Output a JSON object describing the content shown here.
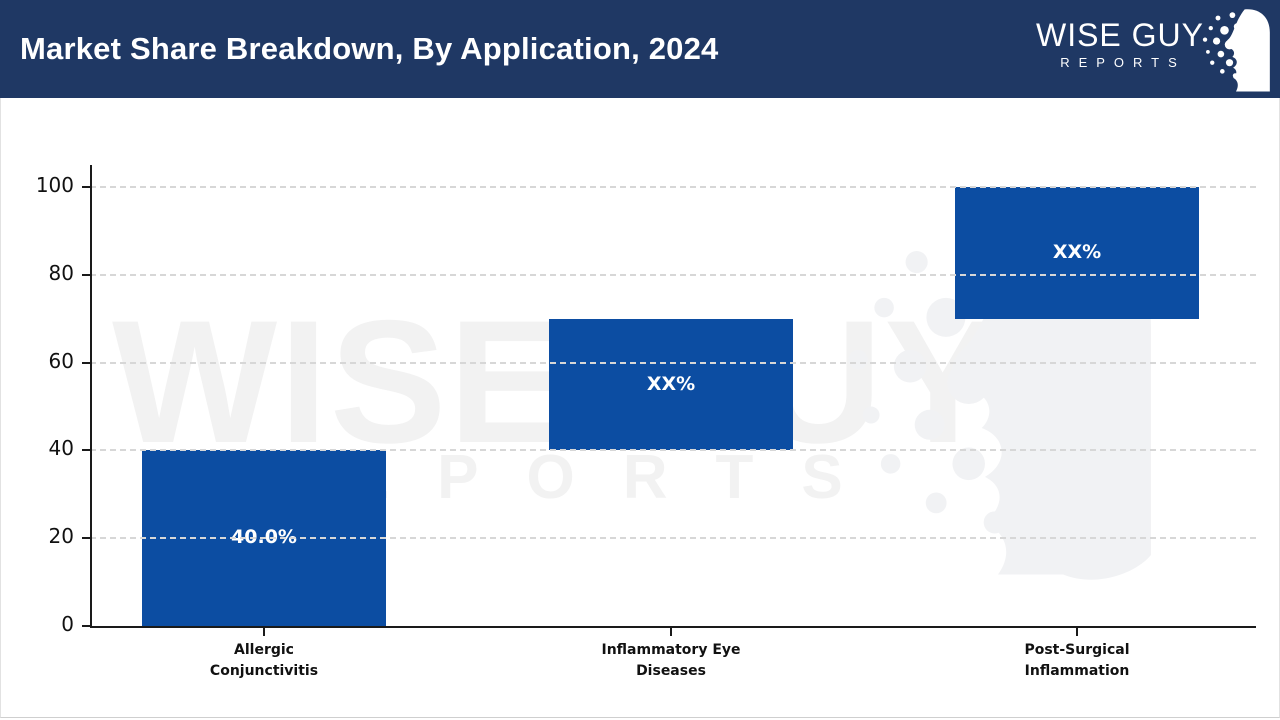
{
  "header": {
    "title": "Market Share Breakdown, By Application, 2024",
    "logo": {
      "brand": "Wise Guy Reports",
      "line1": "WISE GUY",
      "line2": "REPORTS"
    }
  },
  "watermark": {
    "line1": "WISE GUY",
    "line2": "REPORTS",
    "face_icon": "face-profile-dots"
  },
  "colors": {
    "header_bg": "#1f3864",
    "bar": "#0c4da2",
    "bar_label": "#ffffff",
    "gridline": "#d7d7d7",
    "axis": "#1a1a1a",
    "watermark": "#f2f2f2"
  },
  "chart_data": {
    "type": "bar",
    "variant": "waterfall",
    "title": "Market Share Breakdown, By Application, 2024",
    "xlabel": "",
    "ylabel": "",
    "ylim": [
      0,
      100
    ],
    "yticks": [
      0,
      20,
      40,
      60,
      80,
      100
    ],
    "grid": "horizontal-dashed",
    "legend": "none",
    "categories": [
      "Allergic Conjunctivitis",
      "Inflammatory Eye Diseases",
      "Post-Surgical Inflammation"
    ],
    "category_label_lines": [
      [
        "Allergic",
        "Conjunctivitis"
      ],
      [
        "Inflammatory Eye",
        "Diseases"
      ],
      [
        "Post-Surgical",
        "Inflammation"
      ]
    ],
    "segments": [
      {
        "category": "Allergic Conjunctivitis",
        "start": 0,
        "end": 40,
        "label": "40.0%"
      },
      {
        "category": "Inflammatory Eye Diseases",
        "start": 40,
        "end": 70,
        "label": "XX%"
      },
      {
        "category": "Post-Surgical Inflammation",
        "start": 70,
        "end": 100,
        "label": "XX%"
      }
    ]
  }
}
